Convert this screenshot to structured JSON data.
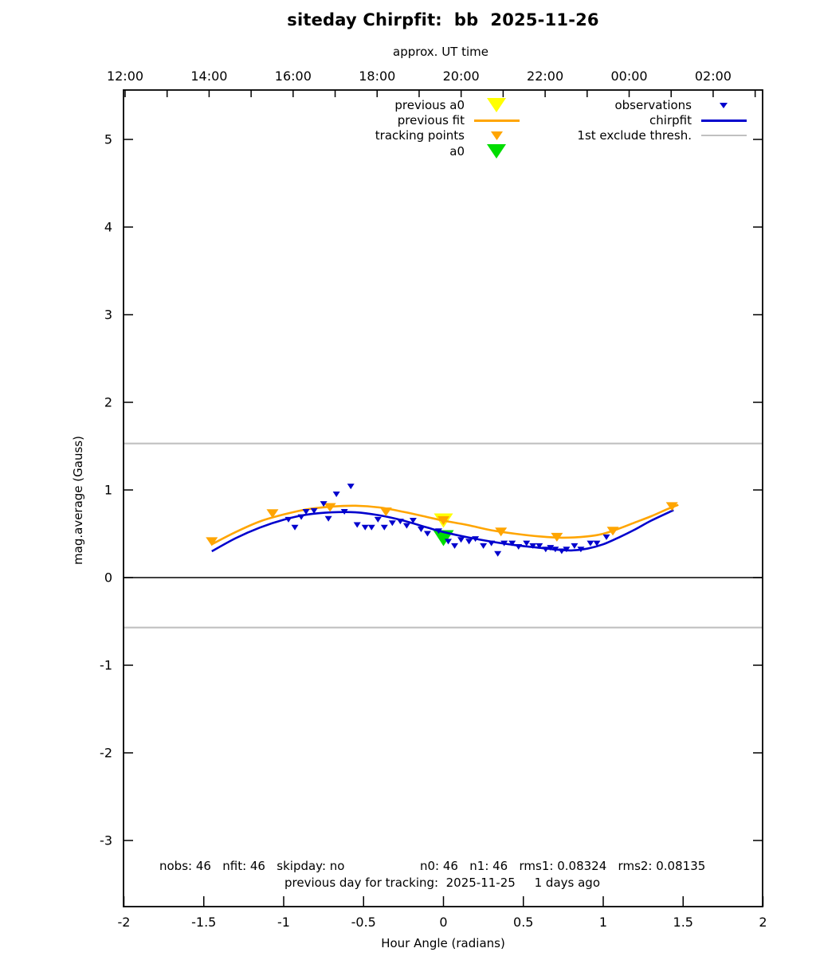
{
  "title": "siteday Chirpfit:  bb  2025-11-26",
  "axes": {
    "top_label": "approx. UT time",
    "left_label": "mag.average (Gauss)",
    "bottom_label": "Hour Angle (radians)"
  },
  "legend": {
    "left": [
      {
        "label": "previous a0",
        "marker": "triangle",
        "size": "large",
        "color": "#ffff00"
      },
      {
        "label": "previous fit",
        "marker": "line",
        "color": "#ffa500"
      },
      {
        "label": "tracking points",
        "marker": "triangle",
        "size": "medium",
        "color": "#ffa500"
      },
      {
        "label": "a0",
        "marker": "triangle",
        "size": "large",
        "color": "#00dd00"
      }
    ],
    "right": [
      {
        "label": "observations",
        "marker": "triangle",
        "size": "small",
        "color": "#0000cd"
      },
      {
        "label": "chirpfit",
        "marker": "line",
        "color": "#0000cd"
      },
      {
        "label": "1st exclude thresh.",
        "marker": "line",
        "color": "#c0c0c0"
      }
    ]
  },
  "stats": {
    "line1_left": "nobs: 46   nfit: 46   skipday: no",
    "line1_right": "n0: 46   n1: 46   rms1: 0.08324   rms2: 0.08135",
    "line2": "previous day for tracking:  2025-11-25     1 days ago"
  },
  "colors": {
    "observations": "#0000cd",
    "chirpfit": "#0000cd",
    "previous_fit": "#ffa500",
    "tracking_points": "#ffa500",
    "previous_a0": "#ffff00",
    "a0": "#00dd00",
    "exclude_threshold": "#c0c0c0",
    "axis": "#000000"
  },
  "chart_data": {
    "type": "scatter",
    "title": "siteday Chirpfit:  bb  2025-11-26",
    "xlabel": "Hour Angle (radians)",
    "ylabel": "mag.average (Gauss)",
    "x2label": "approx. UT time",
    "xlim": [
      -2,
      2
    ],
    "ylim": [
      -3.76,
      5.56
    ],
    "grid": false,
    "x_ticks": [
      -2,
      -1.5,
      -1,
      -0.5,
      0,
      0.5,
      1,
      1.5,
      2
    ],
    "x_tick_labels": [
      "-2",
      "-1.5",
      "-1",
      "-0.5",
      "0",
      "0.5",
      "1",
      "1.5",
      "2"
    ],
    "y_ticks": [
      5,
      4,
      3,
      2,
      1,
      0,
      -1,
      -2,
      -3
    ],
    "y_tick_labels": [
      "5",
      "4",
      "3",
      "2",
      "1",
      "0",
      "-1",
      "-2",
      "-3"
    ],
    "x2_tick_labels": [
      "12:00",
      "",
      "14:00",
      "",
      "16:00",
      "",
      "18:00",
      "",
      "20:00",
      "",
      "22:00",
      "",
      "00:00",
      "",
      "02:00",
      ""
    ],
    "series": [
      {
        "name": "1st exclude thresh.",
        "type": "hline",
        "color": "#c0c0c0",
        "values": [
          1.53,
          -0.57
        ]
      },
      {
        "name": "zero line",
        "type": "hline",
        "color": "#000000",
        "values": [
          0
        ]
      },
      {
        "name": "previous a0",
        "type": "scatter",
        "marker": "triangle-down",
        "color": "#ffff00",
        "points": [
          [
            0.0,
            0.65
          ]
        ]
      },
      {
        "name": "a0",
        "type": "scatter",
        "marker": "triangle-down",
        "color": "#00dd00",
        "points": [
          [
            0.0,
            0.45
          ]
        ]
      },
      {
        "name": "previous fit",
        "type": "line",
        "color": "#ffa500",
        "points": [
          [
            -1.45,
            0.38
          ],
          [
            -1.3,
            0.52
          ],
          [
            -1.15,
            0.64
          ],
          [
            -1.0,
            0.72
          ],
          [
            -0.85,
            0.78
          ],
          [
            -0.7,
            0.81
          ],
          [
            -0.55,
            0.82
          ],
          [
            -0.4,
            0.8
          ],
          [
            -0.25,
            0.75
          ],
          [
            -0.1,
            0.69
          ],
          [
            0,
            0.65
          ],
          [
            0.15,
            0.6
          ],
          [
            0.3,
            0.54
          ],
          [
            0.45,
            0.5
          ],
          [
            0.6,
            0.47
          ],
          [
            0.75,
            0.455
          ],
          [
            0.9,
            0.47
          ],
          [
            1.0,
            0.5
          ],
          [
            1.1,
            0.56
          ],
          [
            1.2,
            0.63
          ],
          [
            1.3,
            0.7
          ],
          [
            1.4,
            0.78
          ],
          [
            1.47,
            0.83
          ]
        ]
      },
      {
        "name": "chirpfit",
        "type": "line",
        "color": "#0000cd",
        "points": [
          [
            -1.45,
            0.3
          ],
          [
            -1.3,
            0.45
          ],
          [
            -1.15,
            0.57
          ],
          [
            -1.0,
            0.66
          ],
          [
            -0.85,
            0.72
          ],
          [
            -0.7,
            0.745
          ],
          [
            -0.55,
            0.745
          ],
          [
            -0.4,
            0.71
          ],
          [
            -0.25,
            0.65
          ],
          [
            -0.1,
            0.57
          ],
          [
            0,
            0.52
          ],
          [
            0.15,
            0.46
          ],
          [
            0.3,
            0.41
          ],
          [
            0.45,
            0.37
          ],
          [
            0.6,
            0.34
          ],
          [
            0.7,
            0.32
          ],
          [
            0.8,
            0.31
          ],
          [
            0.9,
            0.33
          ],
          [
            1.0,
            0.38
          ],
          [
            1.1,
            0.46
          ],
          [
            1.2,
            0.55
          ],
          [
            1.3,
            0.65
          ],
          [
            1.44,
            0.77
          ]
        ]
      },
      {
        "name": "tracking points",
        "type": "scatter",
        "marker": "triangle-down",
        "color": "#ffa500",
        "points": [
          [
            -1.45,
            0.41
          ],
          [
            -1.07,
            0.73
          ],
          [
            -0.71,
            0.8
          ],
          [
            -0.36,
            0.75
          ],
          [
            0.0,
            0.65
          ],
          [
            0.36,
            0.52
          ],
          [
            0.71,
            0.46
          ],
          [
            1.06,
            0.53
          ],
          [
            1.43,
            0.81
          ]
        ]
      },
      {
        "name": "observations",
        "type": "scatter",
        "marker": "triangle-down",
        "color": "#0000cd",
        "points": [
          [
            -0.97,
            0.66
          ],
          [
            -0.93,
            0.57
          ],
          [
            -0.89,
            0.69
          ],
          [
            -0.86,
            0.75
          ],
          [
            -0.81,
            0.76
          ],
          [
            -0.75,
            0.84
          ],
          [
            -0.72,
            0.67
          ],
          [
            -0.67,
            0.95
          ],
          [
            -0.62,
            0.75
          ],
          [
            -0.58,
            1.04
          ],
          [
            -0.54,
            0.6
          ],
          [
            -0.49,
            0.57
          ],
          [
            -0.45,
            0.57
          ],
          [
            -0.41,
            0.66
          ],
          [
            -0.37,
            0.57
          ],
          [
            -0.32,
            0.62
          ],
          [
            -0.27,
            0.64
          ],
          [
            -0.23,
            0.59
          ],
          [
            -0.19,
            0.65
          ],
          [
            -0.14,
            0.55
          ],
          [
            -0.1,
            0.5
          ],
          [
            -0.03,
            0.53
          ],
          [
            0.03,
            0.41
          ],
          [
            0.07,
            0.36
          ],
          [
            0.11,
            0.43
          ],
          [
            0.16,
            0.41
          ],
          [
            0.2,
            0.44
          ],
          [
            0.25,
            0.36
          ],
          [
            0.3,
            0.39
          ],
          [
            0.34,
            0.27
          ],
          [
            0.38,
            0.39
          ],
          [
            0.43,
            0.39
          ],
          [
            0.47,
            0.35
          ],
          [
            0.52,
            0.39
          ],
          [
            0.56,
            0.36
          ],
          [
            0.6,
            0.36
          ],
          [
            0.64,
            0.32
          ],
          [
            0.67,
            0.34
          ],
          [
            0.7,
            0.32
          ],
          [
            0.74,
            0.3
          ],
          [
            0.77,
            0.32
          ],
          [
            0.82,
            0.36
          ],
          [
            0.86,
            0.32
          ],
          [
            0.92,
            0.39
          ],
          [
            0.96,
            0.39
          ],
          [
            1.02,
            0.46
          ]
        ]
      }
    ],
    "annotations": {
      "stats_line1_left": "nobs: 46   nfit: 46   skipday: no",
      "stats_line1_right": "n0: 46   n1: 46   rms1: 0.08324   rms2: 0.08135",
      "stats_line2": "previous day for tracking:  2025-11-25     1 days ago"
    },
    "legend_position": "top-inside"
  }
}
